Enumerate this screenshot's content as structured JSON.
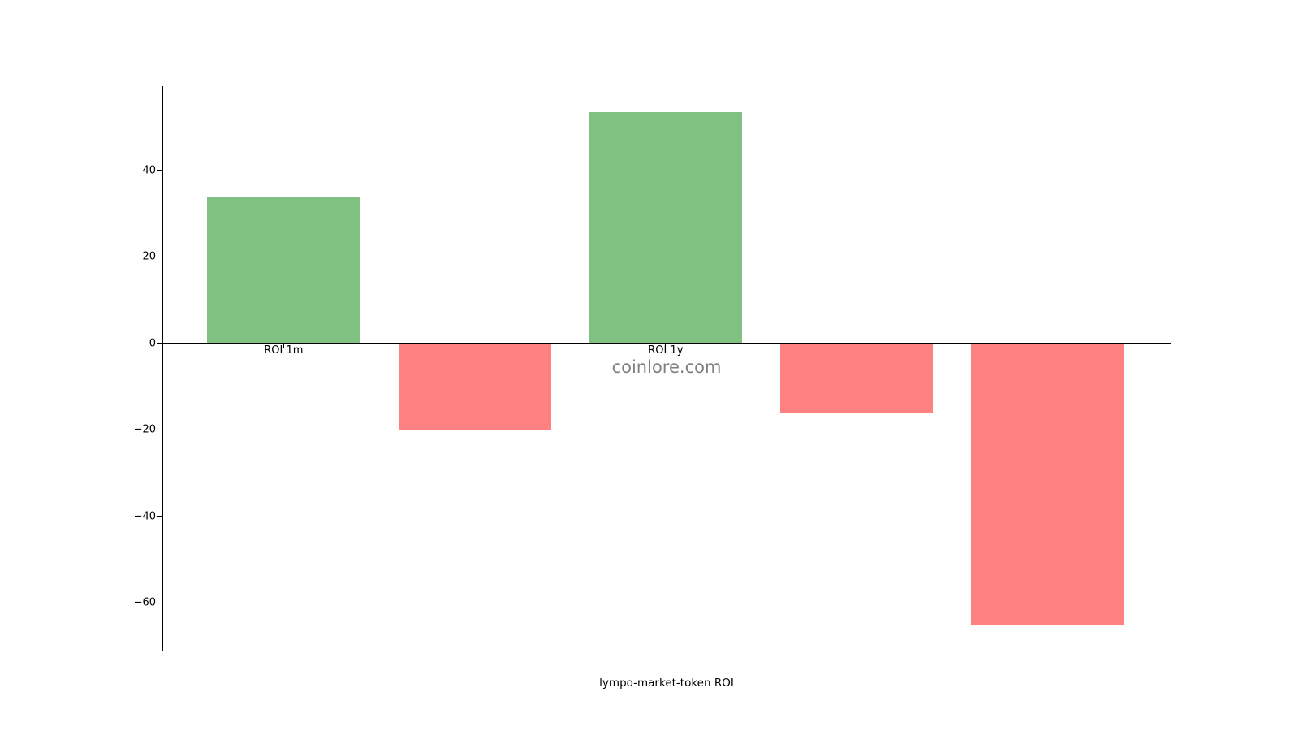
{
  "chart_data": {
    "type": "bar",
    "title": "lympo-market-token ROI",
    "watermark": "coinlore.com",
    "bars": [
      {
        "x": 0,
        "value": 34,
        "color": "green"
      },
      {
        "x": 1,
        "value": -20,
        "color": "red"
      },
      {
        "x": 2,
        "value": 53.5,
        "color": "green"
      },
      {
        "x": 3,
        "value": -16,
        "color": "red"
      },
      {
        "x": 4,
        "value": -65,
        "color": "red"
      }
    ],
    "bar_width": 0.8,
    "xticks": [
      {
        "pos": 0,
        "label": "ROI 1m"
      },
      {
        "pos": 2,
        "label": "ROI 1y"
      }
    ],
    "yticks": [
      {
        "value": 40,
        "label": "40"
      },
      {
        "value": 20,
        "label": "20"
      },
      {
        "value": 0,
        "label": "0"
      },
      {
        "value": -20,
        "label": "−20"
      },
      {
        "value": -40,
        "label": "−40"
      },
      {
        "value": -60,
        "label": "−60"
      }
    ],
    "xlim": [
      -0.635,
      4.645
    ],
    "ylim": [
      -71.2,
      59.5
    ],
    "grid": false,
    "legend": null,
    "colors": {
      "green": "#80c080",
      "red": "#ff8080",
      "axis": "#000000",
      "text": "#000000",
      "watermark": "#808080"
    }
  }
}
